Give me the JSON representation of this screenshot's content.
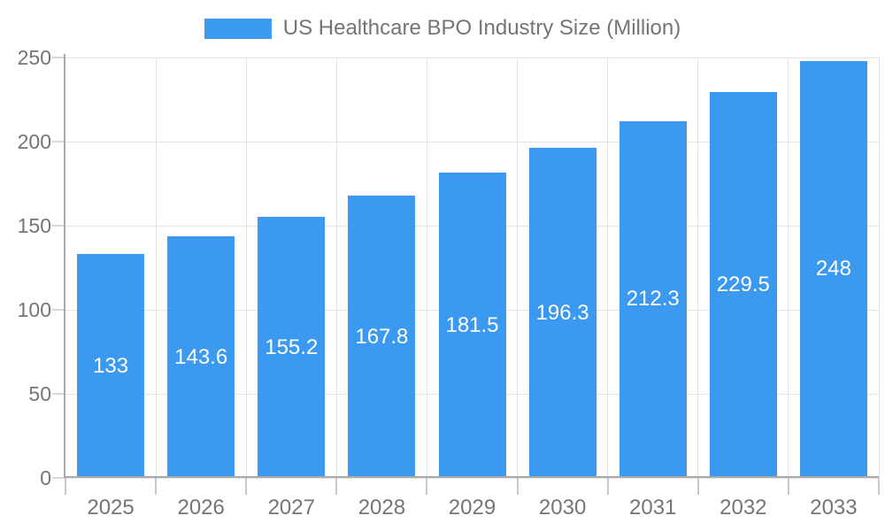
{
  "legend": {
    "label": "US Healthcare BPO Industry Size (Million)"
  },
  "chart_data": {
    "type": "bar",
    "title": "US Healthcare BPO Industry Size (Million)",
    "categories": [
      "2025",
      "2026",
      "2027",
      "2028",
      "2029",
      "2030",
      "2031",
      "2032",
      "2033"
    ],
    "values": [
      133,
      143.6,
      155.2,
      167.8,
      181.5,
      196.3,
      212.3,
      229.5,
      248
    ],
    "value_labels": [
      "133",
      "143.6",
      "155.2",
      "167.8",
      "181.5",
      "196.3",
      "212.3",
      "229.5",
      "248"
    ],
    "xlabel": "",
    "ylabel": "",
    "ylim": [
      0,
      250
    ],
    "yticks": [
      0,
      50,
      100,
      150,
      200,
      250
    ],
    "ytick_labels": [
      "0",
      "50",
      "100",
      "150",
      "200",
      "250"
    ],
    "grid": true,
    "legend_position": "top-center",
    "colors": {
      "bar": "#3b99f0",
      "bar_value_label": "#ffffff",
      "axis_line": "#a9a9a9",
      "gridline": "#e3e3e3",
      "tick": "#c9c9c9",
      "tick_stub": "#d8d8d8",
      "text": "#757575",
      "background": "#ffffff"
    }
  }
}
